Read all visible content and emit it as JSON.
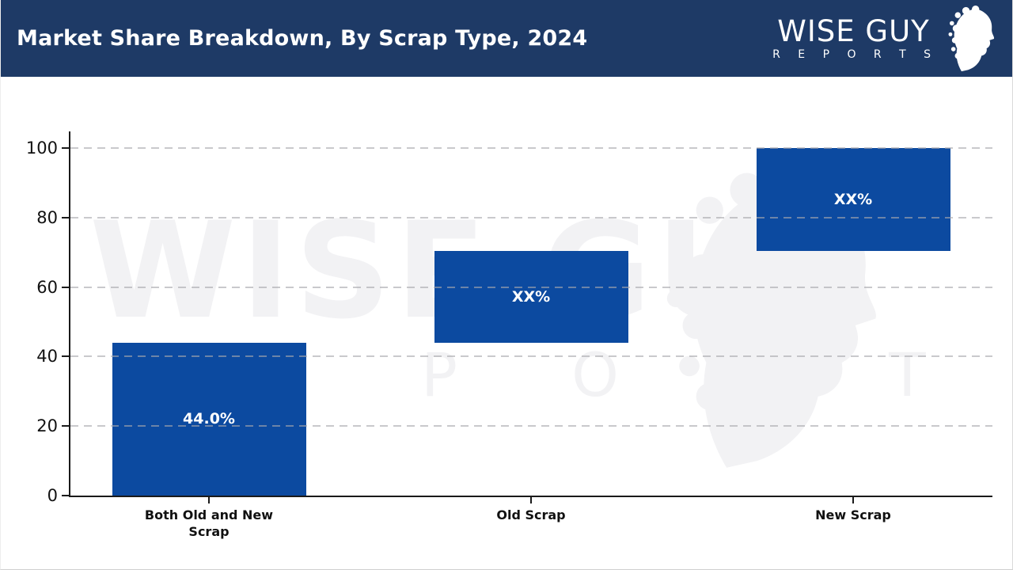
{
  "header": {
    "title": "Market Share Breakdown, By Scrap Type, 2024",
    "bg_color": "#1e3a66",
    "logo": {
      "line1": "WISE GUY",
      "line2": "R E P O R T S"
    }
  },
  "watermark": {
    "line1": "WISE GUY",
    "line2": "R E P O R T S"
  },
  "chart_data": {
    "type": "bar",
    "subtype": "waterfall",
    "title": "Market Share Breakdown, By Scrap Type, 2024",
    "categories": [
      "Both Old and New Scrap",
      "Old Scrap",
      "New Scrap"
    ],
    "segments": [
      {
        "category": "Both Old and New Scrap",
        "start": 0,
        "end": 44.0,
        "label": "44.0%",
        "value_shown": "44.0%"
      },
      {
        "category": "Old Scrap",
        "start": 44.0,
        "end": 70.4,
        "label": "XX%",
        "value_shown": "XX% (masked, ~26.4)"
      },
      {
        "category": "New Scrap",
        "start": 70.4,
        "end": 100,
        "label": "XX%",
        "value_shown": "XX% (masked, ~29.6)"
      }
    ],
    "yticks": [
      0,
      20,
      40,
      60,
      80,
      100
    ],
    "ylim": [
      0,
      100
    ],
    "xlabel": "",
    "ylabel": "",
    "grid": true,
    "grid_style": "dashed",
    "legend": "none",
    "bar_color": "#0c4aa0",
    "grid_color": "#d9d9d9",
    "axis_color": "#1a1a1a"
  }
}
